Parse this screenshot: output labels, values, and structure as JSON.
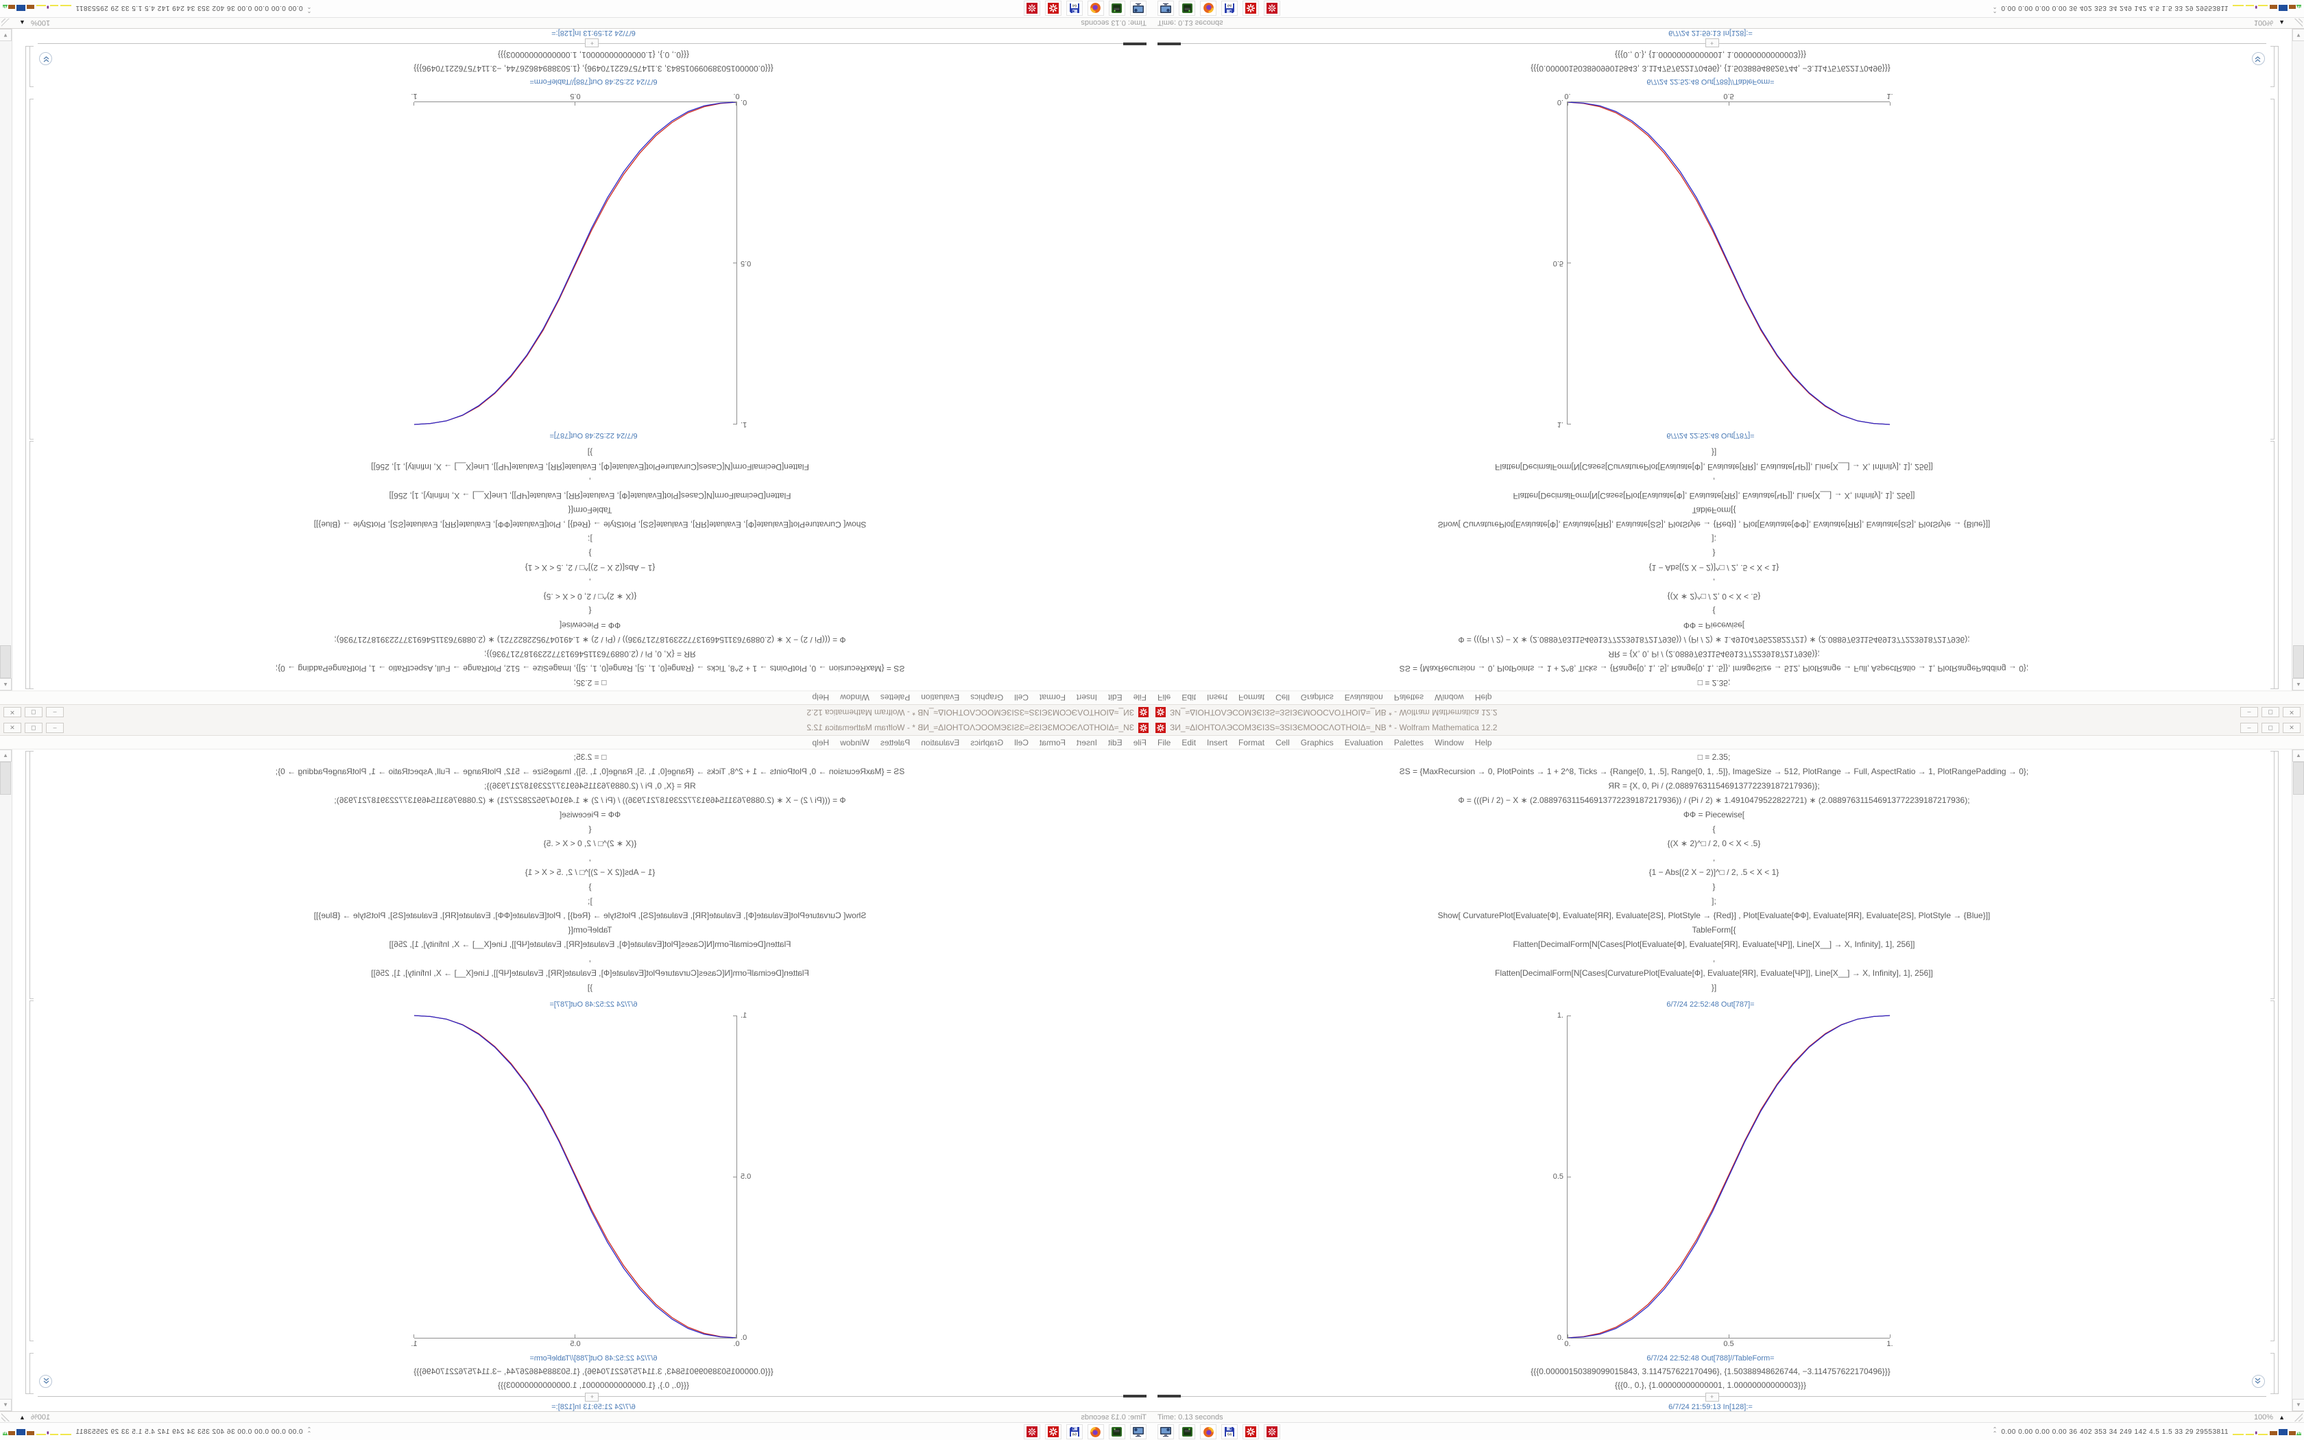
{
  "window": {
    "title": "ЗИ_≈ΔІОНТОΛЭСОМЗЄІЗЅ≈ЗЅІЗЄМООСΛОТНОІΔ≈_NB * - Wolfram Mathematica 12.2",
    "controls": {
      "minimize": "–",
      "maximize": "◻",
      "close": "✕"
    },
    "menu": [
      "File",
      "Edit",
      "Insert",
      "Format",
      "Cell",
      "Graphics",
      "Evaluation",
      "Palettes",
      "Window",
      "Help"
    ]
  },
  "notebook": {
    "input_lines": [
      "□ = 2.35;",
      "ƧЅ = {MaxRecursion → 0, PlotPoints → 1 + 2^8, Ticks → {Range[0, 1, .5], Range[0, 1, .5]}, ImageSize → 512, PlotRange → Full, AspectRatio → 1, PlotRangePadding → 0};",
      "ЯR = {X, 0, Pi / (2.088976311546913772239187217936)};",
      "Ф = (((Pi / 2) − X ∗ (2.088976311546913772239187217936)) / (Pi / 2) ∗ 1.4910479522822721) ∗ (2.088976311546913772239187217936);",
      "ФФ = Piecewise[",
      "{",
      "{(X ∗ 2)^□ / 2, 0 < X < .5}",
      ",",
      "{1 − Abs[(2 X − 2)]^□ / 2, .5 < X < 1}",
      "}",
      "];",
      "Show[ CurvaturePlot[Evaluate[Ф], Evaluate[ЯR], Evaluate[ƧЅ], PlotStyle → {Red}] ,  Plot[Evaluate[ФФ], Evaluate[ЯR], Evaluate[ƧЅ], PlotStyle → {Blue}]]",
      "TableForm[{",
      "Flatten[DecimalForm[N[Cases[Plot[Evaluate[Ф], Evaluate[ЯR], Evaluate[ЧР]], Line[X__] → X, Infinity], 1], 256]]",
      ",",
      "Flatten[DecimalForm[N[Cases[CurvaturePlot[Evaluate[Ф], Evaluate[ЯR], Evaluate[ЧР]], Line[X__] → X, Infinity], 1], 256]]",
      "}]"
    ],
    "out1_label": "6/7/24 22:52:48 Out[787]=",
    "out2_label": "6/7/24 22:52:48 Out[788]//TableForm=",
    "out2_rows": [
      "{{{0.00000150389099015843, 3.114757622170496}, {1.50388948626744, −3.114757622170496}}}",
      "{{{0., 0.}, {1.00000000000001, 1.00000000000003}}}"
    ],
    "insert_plus": "+",
    "in_label": "6/7/24 21:59:13 In[128]:="
  },
  "chart_data": {
    "type": "line",
    "title": "Out[787] sigmoid plot (CurvaturePlot vs Piecewise Plot)",
    "xlabel": "",
    "ylabel": "",
    "xlim": [
      0,
      1
    ],
    "ylim": [
      0,
      1
    ],
    "grid": false,
    "legend_position": "none",
    "axes_style": "left-bottom-L-frame",
    "x": [
      0,
      0.05,
      0.1,
      0.15,
      0.2,
      0.25,
      0.3,
      0.35,
      0.4,
      0.45,
      0.5,
      0.55,
      0.6,
      0.65,
      0.7,
      0.75,
      0.8,
      0.85,
      0.9,
      0.95,
      1
    ],
    "series": [
      {
        "name": "curvature-plot-red",
        "color": "#cc2a22",
        "values": [
          0,
          0.004,
          0.014,
          0.033,
          0.063,
          0.104,
          0.158,
          0.224,
          0.304,
          0.399,
          0.505,
          0.612,
          0.708,
          0.787,
          0.852,
          0.904,
          0.944,
          0.972,
          0.989,
          0.997,
          1
        ]
      },
      {
        "name": "piecewise-plot-blue",
        "color": "#2b27c8",
        "values": [
          0,
          0.003,
          0.011,
          0.029,
          0.058,
          0.098,
          0.151,
          0.216,
          0.296,
          0.392,
          0.5,
          0.608,
          0.704,
          0.784,
          0.849,
          0.902,
          0.942,
          0.971,
          0.989,
          0.997,
          1
        ]
      }
    ],
    "xticks": [
      {
        "value": 0,
        "label": "0."
      },
      {
        "value": 0.5,
        "label": "0.5"
      },
      {
        "value": 1,
        "label": "1."
      }
    ],
    "yticks": [
      {
        "value": 0,
        "label": "0."
      },
      {
        "value": 0.5,
        "label": "0.5"
      },
      {
        "value": 1,
        "label": "1."
      }
    ]
  },
  "statusbar": {
    "left": "Time: 0.13 seconds",
    "zoom": "100%"
  },
  "taskbar": {
    "launcher_icons": [
      "display-capture-icon",
      "removable-drive-icon",
      "firefox-icon",
      "floppy64-icon",
      "mathematica-icon",
      "mathematica-kernel-icon"
    ],
    "floppy_label": "64",
    "tray_text": "0.00 0.00 0.00 0.00  36  402  353  34  249  142  4.5  1.5  33  29  29553811"
  },
  "colors": {
    "cell_label_blue": "#4a7ab5",
    "code_gray": "#5c5c5c",
    "curve_red": "#cc2a22",
    "curve_blue": "#2b27c8",
    "mathematica_red": "#cc1414",
    "firefox_orange": "#e8641a",
    "drive_green": "#3aa32a",
    "floppy_blue": "#2a3fae"
  }
}
